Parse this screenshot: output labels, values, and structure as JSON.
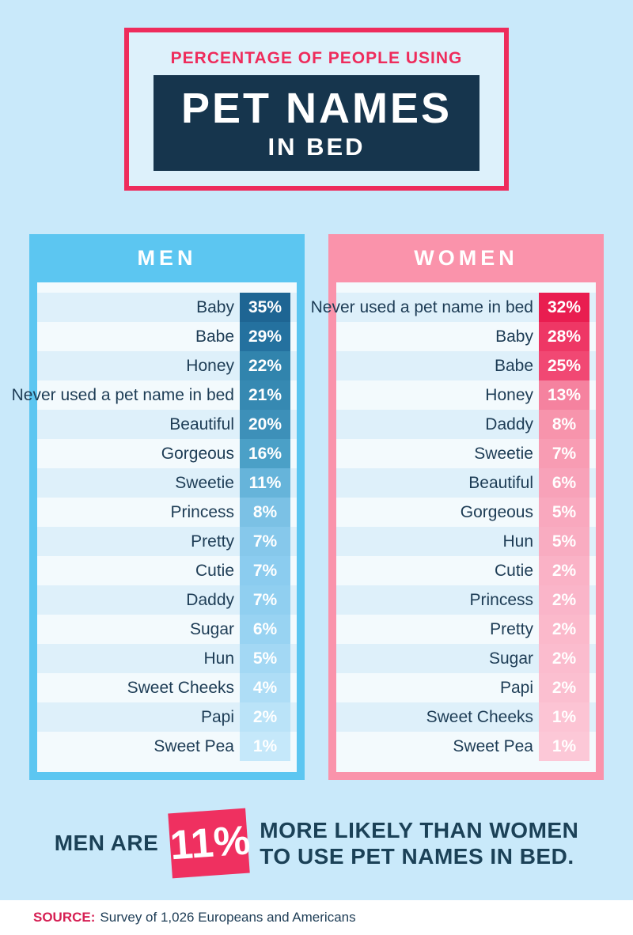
{
  "page": {
    "background": "#c9e9fa",
    "accent_pink": "#ee2c5c",
    "navy": "#16354d"
  },
  "header": {
    "kicker": "PERCENTAGE OF PEOPLE USING",
    "title_line1": "PET NAMES",
    "title_line2": "IN BED"
  },
  "chart_data": {
    "type": "table",
    "title": "Percentage of People Using Pet Names in Bed",
    "groups": [
      {
        "name": "MEN",
        "header_color": "#5cc6f1",
        "rows": [
          {
            "label": "Baby",
            "value": 35,
            "display": "35%",
            "color": "#1e6593"
          },
          {
            "label": "Babe",
            "value": 29,
            "display": "29%",
            "color": "#24719f"
          },
          {
            "label": "Honey",
            "value": 22,
            "display": "22%",
            "color": "#3184ad"
          },
          {
            "label": "Never used a pet name in bed",
            "value": 21,
            "display": "21%",
            "color": "#3689b2"
          },
          {
            "label": "Beautiful",
            "value": 20,
            "display": "20%",
            "color": "#3d90b9"
          },
          {
            "label": "Gorgeous",
            "value": 16,
            "display": "16%",
            "color": "#4ba0c7"
          },
          {
            "label": "Sweetie",
            "value": 11,
            "display": "11%",
            "color": "#66b4da"
          },
          {
            "label": "Princess",
            "value": 8,
            "display": "8%",
            "color": "#7bc1e5"
          },
          {
            "label": "Pretty",
            "value": 7,
            "display": "7%",
            "color": "#86c8eb"
          },
          {
            "label": "Cutie",
            "value": 7,
            "display": "7%",
            "color": "#8bccef"
          },
          {
            "label": "Daddy",
            "value": 7,
            "display": "7%",
            "color": "#90cff0"
          },
          {
            "label": "Sugar",
            "value": 6,
            "display": "6%",
            "color": "#98d3f2"
          },
          {
            "label": "Hun",
            "value": 5,
            "display": "5%",
            "color": "#a3d8f4"
          },
          {
            "label": "Sweet Cheeks",
            "value": 4,
            "display": "4%",
            "color": "#aeddf6"
          },
          {
            "label": "Papi",
            "value": 2,
            "display": "2%",
            "color": "#bae3f8"
          },
          {
            "label": "Sweet Pea",
            "value": 1,
            "display": "1%",
            "color": "#c5e8fa"
          }
        ]
      },
      {
        "name": "WOMEN",
        "header_color": "#fa93ab",
        "rows": [
          {
            "label": "Never used a pet name in bed",
            "value": 32,
            "display": "32%",
            "color": "#e91d50"
          },
          {
            "label": "Baby",
            "value": 28,
            "display": "28%",
            "color": "#ee3765"
          },
          {
            "label": "Babe",
            "value": 25,
            "display": "25%",
            "color": "#f14873"
          },
          {
            "label": "Honey",
            "value": 13,
            "display": "13%",
            "color": "#f5829f"
          },
          {
            "label": "Daddy",
            "value": 8,
            "display": "8%",
            "color": "#f794ac"
          },
          {
            "label": "Sweetie",
            "value": 7,
            "display": "7%",
            "color": "#f89cb3"
          },
          {
            "label": "Beautiful",
            "value": 6,
            "display": "6%",
            "color": "#f8a2b9"
          },
          {
            "label": "Gorgeous",
            "value": 5,
            "display": "5%",
            "color": "#f9a8be"
          },
          {
            "label": "Hun",
            "value": 5,
            "display": "5%",
            "color": "#f9acc1"
          },
          {
            "label": "Cutie",
            "value": 2,
            "display": "2%",
            "color": "#fab2c6"
          },
          {
            "label": "Princess",
            "value": 2,
            "display": "2%",
            "color": "#fab5c9"
          },
          {
            "label": "Pretty",
            "value": 2,
            "display": "2%",
            "color": "#fbb9cb"
          },
          {
            "label": "Sugar",
            "value": 2,
            "display": "2%",
            "color": "#fbbcce"
          },
          {
            "label": "Papi",
            "value": 2,
            "display": "2%",
            "color": "#fbbfd0"
          },
          {
            "label": "Sweet Cheeks",
            "value": 1,
            "display": "1%",
            "color": "#fcc4d4"
          },
          {
            "label": "Sweet Pea",
            "value": 1,
            "display": "1%",
            "color": "#fcc8d7"
          }
        ]
      }
    ]
  },
  "callout": {
    "prefix": "MEN ARE",
    "highlight": "11%",
    "highlight_color": "#ef3060",
    "suffix_line1": "MORE LIKELY THAN WOMEN",
    "suffix_line2": "TO USE PET NAMES IN BED."
  },
  "footer": {
    "source_label": "SOURCE:",
    "source_text": "Survey of 1,026 Europeans and Americans"
  }
}
